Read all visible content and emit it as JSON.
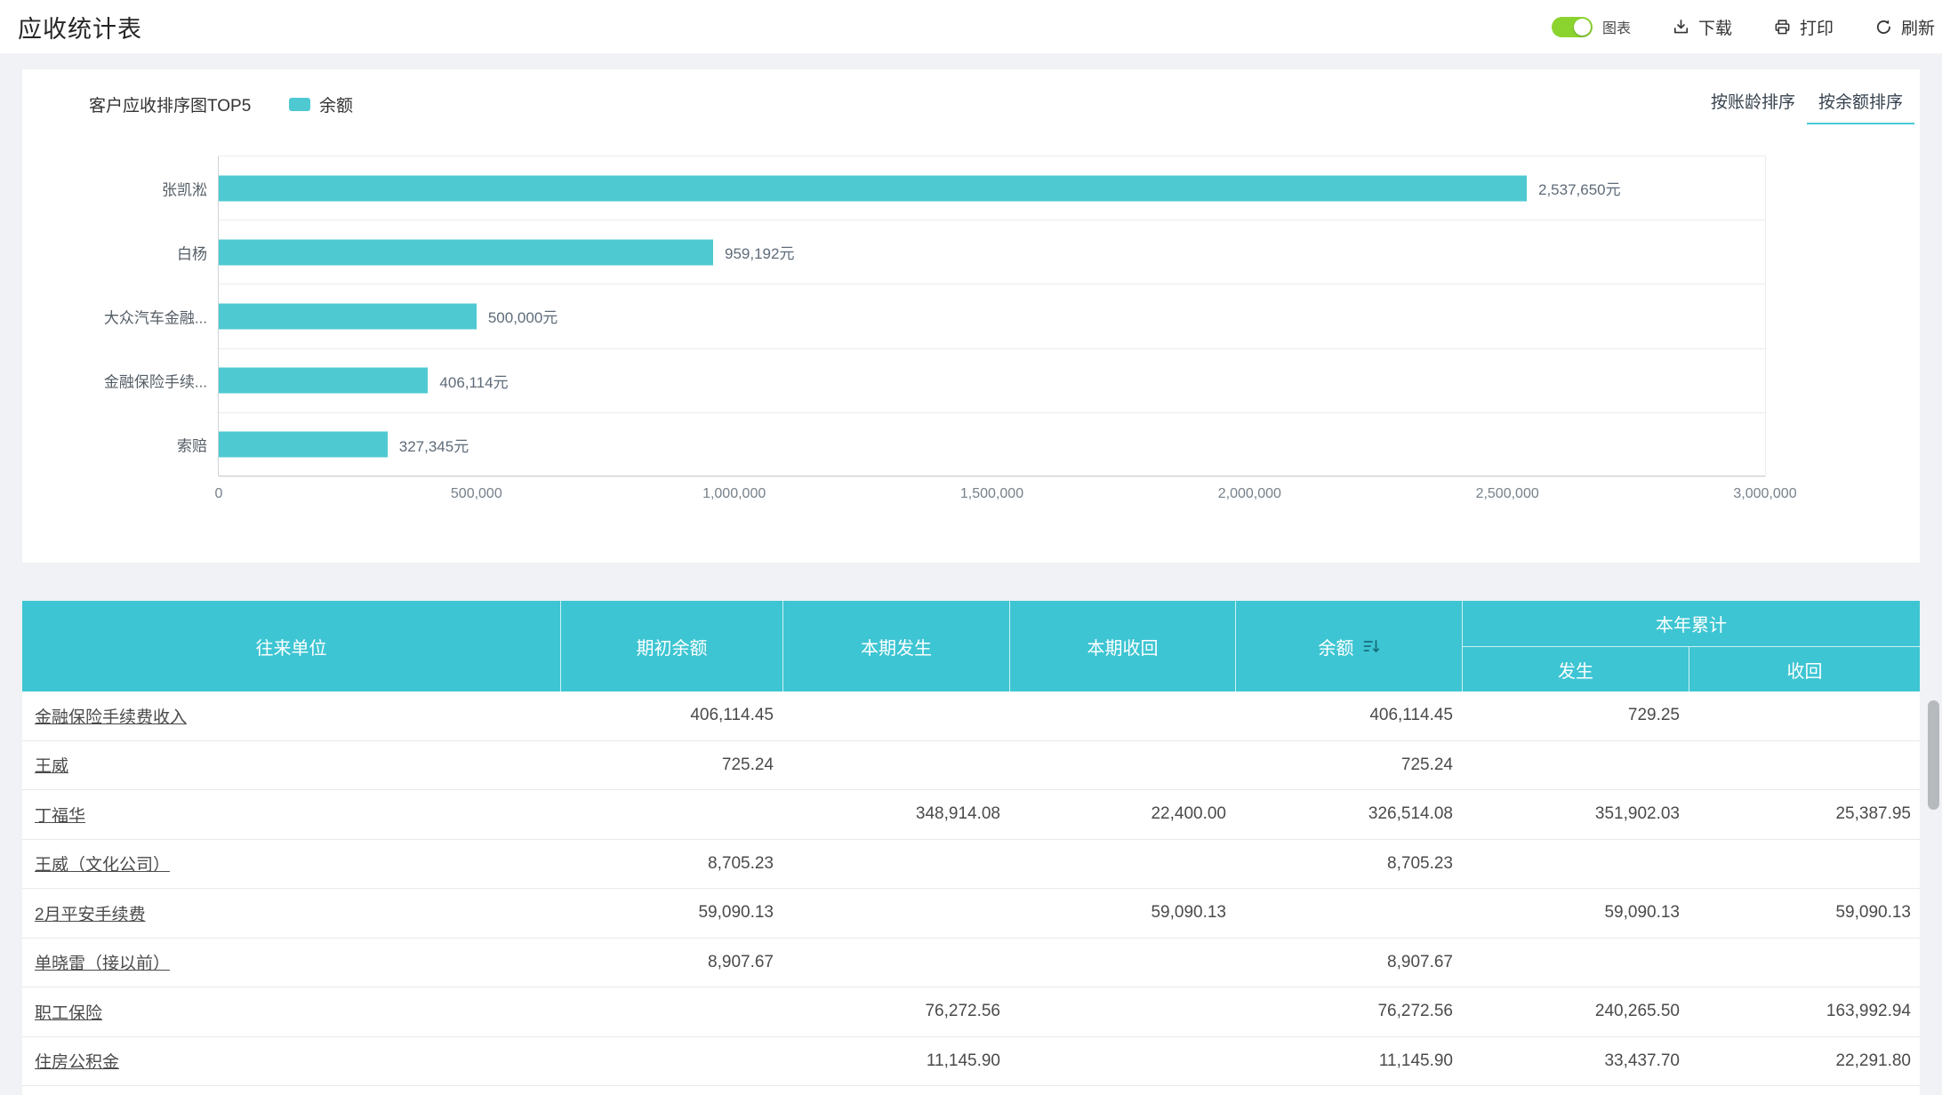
{
  "page": {
    "title": "应收统计表"
  },
  "toolbar": {
    "chart_toggle_label": "图表",
    "chart_toggle_state": "on",
    "download_label": "下载",
    "print_label": "打印",
    "refresh_label": "刷新"
  },
  "chart": {
    "title": "客户应收排序图TOP5",
    "legend_label": "余额",
    "tabs": [
      {
        "label": "按账龄排序"
      },
      {
        "label": "按余额排序"
      }
    ],
    "active_tab": "按余额排序"
  },
  "chart_data": {
    "type": "bar",
    "orientation": "horizontal",
    "title": "客户应收排序图TOP5",
    "series_name": "余额",
    "categories": [
      "张凯淞",
      "白杨",
      "大众汽车金融...",
      "金融保险手续...",
      "索赔"
    ],
    "values": [
      2537650,
      959192,
      500000,
      406114,
      327345
    ],
    "value_labels": [
      "2,537,650元",
      "959,192元",
      "500,000元",
      "406,114元",
      "327,345元"
    ],
    "xlim": [
      0,
      3000000
    ],
    "x_ticks": [
      "0",
      "500,000",
      "1,000,000",
      "1,500,000",
      "2,000,000",
      "2,500,000",
      "3,000,000"
    ],
    "bar_color": "#4ec9d2",
    "grid": "band separators, left and bottom axis lines",
    "legend_position": "top-left"
  },
  "table": {
    "headers": {
      "unit": "往来单位",
      "opening": "期初余额",
      "occurred": "本期发生",
      "recovered": "本期收回",
      "balance": "余额",
      "ytd": "本年累计",
      "ytd_occurred": "发生",
      "ytd_recovered": "收回"
    },
    "sorted_by": "余额",
    "rows": [
      {
        "name": "金融保险手续费收入",
        "opening": "406,114.45",
        "occurred": "",
        "recovered": "",
        "balance": "406,114.45",
        "ytd_occurred": "729.25",
        "ytd_recovered": ""
      },
      {
        "name": "王威",
        "opening": "725.24",
        "occurred": "",
        "recovered": "",
        "balance": "725.24",
        "ytd_occurred": "",
        "ytd_recovered": ""
      },
      {
        "name": "丁福华",
        "opening": "",
        "occurred": "348,914.08",
        "recovered": "22,400.00",
        "balance": "326,514.08",
        "ytd_occurred": "351,902.03",
        "ytd_recovered": "25,387.95"
      },
      {
        "name": "王威（文化公司）",
        "opening": "8,705.23",
        "occurred": "",
        "recovered": "",
        "balance": "8,705.23",
        "ytd_occurred": "",
        "ytd_recovered": ""
      },
      {
        "name": "2月平安手续费",
        "opening": "59,090.13",
        "occurred": "",
        "recovered": "59,090.13",
        "balance": "",
        "ytd_occurred": "59,090.13",
        "ytd_recovered": "59,090.13"
      },
      {
        "name": "单晓雷（接以前）",
        "opening": "8,907.67",
        "occurred": "",
        "recovered": "",
        "balance": "8,907.67",
        "ytd_occurred": "",
        "ytd_recovered": ""
      },
      {
        "name": "职工保险",
        "opening": "",
        "occurred": "76,272.56",
        "recovered": "",
        "balance": "76,272.56",
        "ytd_occurred": "240,265.50",
        "ytd_recovered": "163,992.94"
      },
      {
        "name": "住房公积金",
        "opening": "",
        "occurred": "11,145.90",
        "recovered": "",
        "balance": "11,145.90",
        "ytd_occurred": "33,437.70",
        "ytd_recovered": "22,291.80"
      }
    ]
  },
  "colors": {
    "accent_teal_header": "#3ec5d3",
    "bar_teal": "#4ec9d2",
    "toggle_green": "#8bd32e",
    "page_bg": "#f0f2f5",
    "tab_underline": "#4ac9d6"
  }
}
